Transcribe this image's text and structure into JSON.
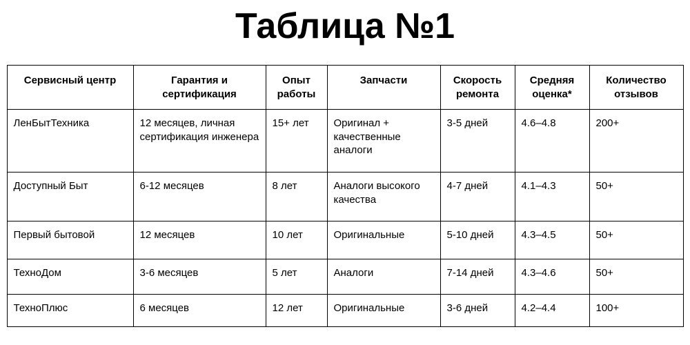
{
  "title": "Таблица №1",
  "table": {
    "headers": [
      "Сервисный центр",
      "Гарантия и сертификация",
      "Опыт работы",
      "Запчасти",
      "Скорость ремонта",
      "Средняя оценка*",
      "Количество отзывов"
    ],
    "rows": [
      {
        "service_center": "ЛенБытТехника",
        "warranty": "12 месяцев, личная сертификация инженера",
        "experience": "15+ лет",
        "parts": "Оригинал + качественные аналоги",
        "repair_speed": "3-5 дней",
        "avg_rating": "4.6–4.8",
        "reviews_count": "200+"
      },
      {
        "service_center": "Доступный Быт",
        "warranty": "6-12 месяцев",
        "experience": "8 лет",
        "parts": "Аналоги высокого качества",
        "repair_speed": "4-7 дней",
        "avg_rating": "4.1–4.3",
        "reviews_count": "50+"
      },
      {
        "service_center": "Первый бытовой",
        "warranty": "12 месяцев",
        "experience": "10 лет",
        "parts": "Оригинальные",
        "repair_speed": "5-10 дней",
        "avg_rating": "4.3–4.5",
        "reviews_count": "50+"
      },
      {
        "service_center": "ТехноДом",
        "warranty": "3-6 месяцев",
        "experience": "5 лет",
        "parts": "Аналоги",
        "repair_speed": "7-14 дней",
        "avg_rating": "4.3–4.6",
        "reviews_count": "50+"
      },
      {
        "service_center": "ТехноПлюс",
        "warranty": "6 месяцев",
        "experience": "12 лет",
        "parts": "Оригинальные",
        "repair_speed": "3-6 дней",
        "avg_rating": "4.2–4.4",
        "reviews_count": "100+"
      }
    ],
    "column_keys": [
      "service_center",
      "warranty",
      "experience",
      "parts",
      "repair_speed",
      "avg_rating",
      "reviews_count"
    ]
  }
}
